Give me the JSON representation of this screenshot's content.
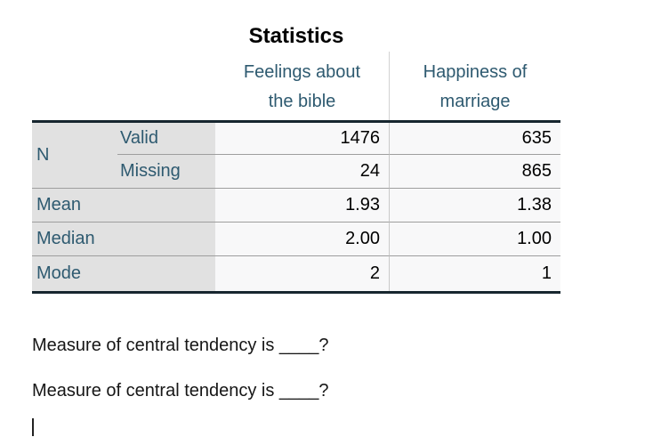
{
  "table": {
    "title": "Statistics",
    "columns": [
      "Feelings about the bible",
      "Happiness of marriage"
    ],
    "columns_lines": [
      [
        "Feelings about",
        "the bible"
      ],
      [
        "Happiness of",
        "marriage"
      ]
    ],
    "rows": [
      {
        "stat": "N",
        "sub": "Valid",
        "values": [
          "1476",
          "635"
        ]
      },
      {
        "stat": "",
        "sub": "Missing",
        "values": [
          "24",
          "865"
        ]
      },
      {
        "stat": "Mean",
        "sub": "",
        "values": [
          "1.93",
          "1.38"
        ]
      },
      {
        "stat": "Median",
        "sub": "",
        "values": [
          "2.00",
          "1.00"
        ]
      },
      {
        "stat": "Mode",
        "sub": "",
        "values": [
          "2",
          "1"
        ]
      }
    ]
  },
  "questions": {
    "q1": "Measure of central tendency is ____?",
    "q2": "Measure of central tendency is ____?"
  },
  "editor": {
    "caret_visible": true
  },
  "colors": {
    "header_text": "#2e5a70",
    "heavy_border": "#17262f",
    "row_separator": "#9e9e9e",
    "column_divider": "#c9c9c9",
    "stub_background": "#e1e1e1",
    "cell_background": "#f8f8f9"
  }
}
